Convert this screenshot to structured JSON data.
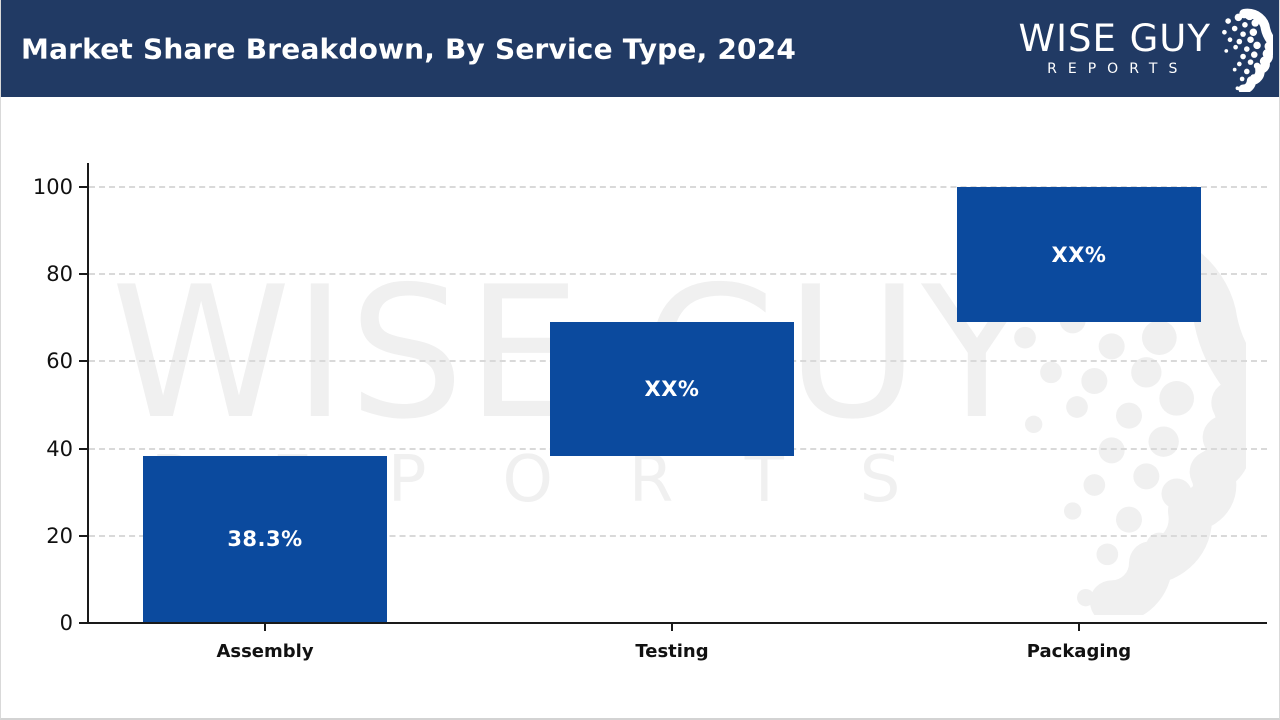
{
  "header": {
    "title": "Market Share Breakdown, By Service Type, 2024",
    "logo": {
      "line1": "WISE GUY",
      "line2": "REPORTS"
    }
  },
  "watermark": {
    "line1": "WISE GUY",
    "line2": "REPORTS"
  },
  "chart_data": {
    "type": "bar",
    "subtype": "waterfall",
    "title": "Market Share Breakdown, By Service Type, 2024",
    "categories": [
      "Assembly",
      "Testing",
      "Packaging"
    ],
    "segments": [
      {
        "category": "Assembly",
        "start": 0,
        "end": 38.3,
        "label": "38.3%"
      },
      {
        "category": "Testing",
        "start": 38.3,
        "end": 69,
        "label": "XX%"
      },
      {
        "category": "Packaging",
        "start": 69,
        "end": 100,
        "label": "XX%"
      }
    ],
    "ylabel": "",
    "xlabel": "",
    "ylim": [
      0,
      100
    ],
    "yticks": [
      0,
      20,
      40,
      60,
      80,
      100
    ],
    "grid": "horizontal dashed",
    "legend": "none",
    "bar_color": "#0b4a9e",
    "bar_label_color": "#ffffff"
  },
  "colors": {
    "header_bg": "#213a64",
    "title_text": "#ffffff",
    "bar": "#0b4a9e",
    "grid": "#d9d9d9",
    "axis": "#1a1a1a",
    "watermark": "#f0f0f0"
  }
}
